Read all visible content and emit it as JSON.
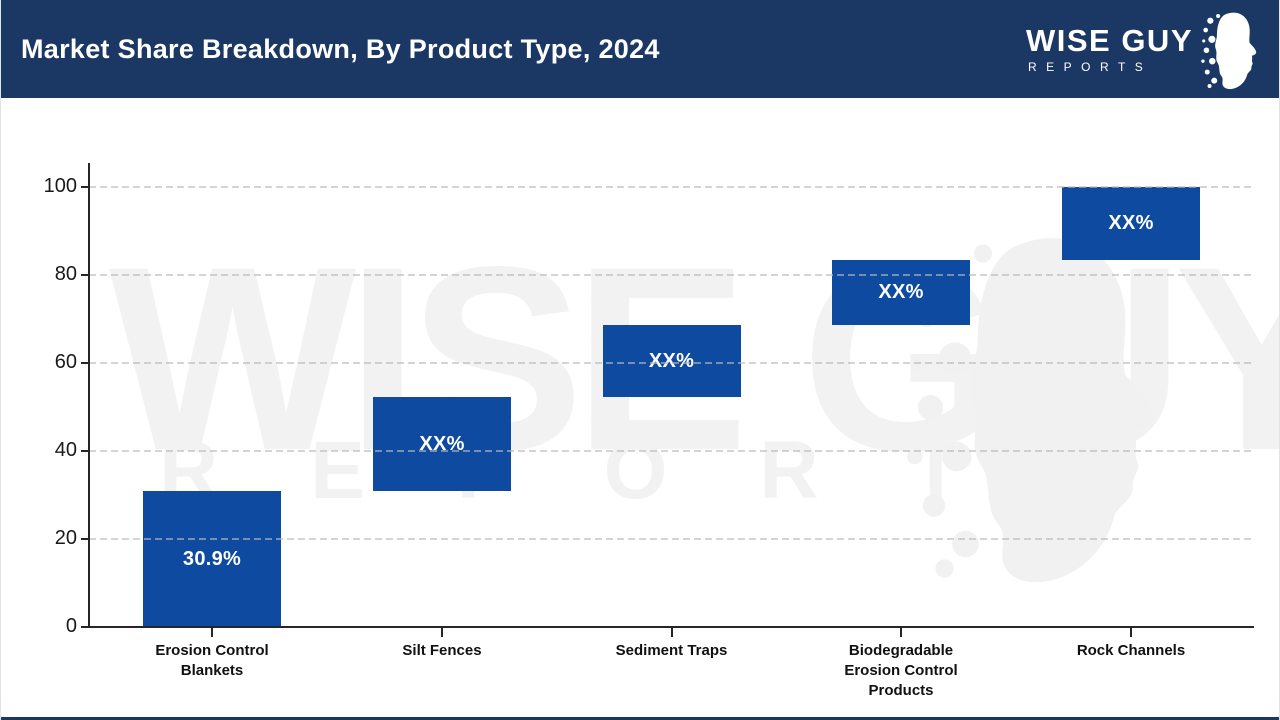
{
  "header": {
    "title": "Market Share Breakdown, By Product Type, 2024",
    "bg_color": "#1B3764",
    "logo": {
      "line1": "WISE GUY",
      "line2": "REPORTS"
    }
  },
  "watermark": {
    "line1": "WISE GUY",
    "line2": "REPORTS"
  },
  "chart_data": {
    "type": "bar",
    "subtype": "waterfall",
    "title": "Market Share Breakdown, By Product Type, 2024",
    "categories": [
      "Erosion Control\nBlankets",
      "Silt Fences",
      "Sediment Traps",
      "Biodegradable\nErosion Control\nProducts",
      "Rock Channels"
    ],
    "segments": [
      {
        "category": "Erosion Control Blankets",
        "start": 0,
        "end": 30.9,
        "value": 30.9,
        "label": "30.9%"
      },
      {
        "category": "Silt Fences",
        "start": 30.9,
        "end": 52.2,
        "value": 21.3,
        "label": "XX%"
      },
      {
        "category": "Sediment Traps",
        "start": 52.2,
        "end": 68.6,
        "value": 16.4,
        "label": "XX%"
      },
      {
        "category": "Biodegradable Erosion Control Products",
        "start": 68.6,
        "end": 83.3,
        "value": 14.7,
        "label": "XX%"
      },
      {
        "category": "Rock Channels",
        "start": 83.3,
        "end": 100.0,
        "value": 16.7,
        "label": "XX%"
      }
    ],
    "yticks": [
      0,
      20,
      40,
      60,
      80,
      100
    ],
    "ylim": [
      0,
      105
    ],
    "xlabel": "",
    "ylabel": "",
    "grid": true,
    "grid_style": "dashed",
    "legend": false,
    "bar_color": "#0D4AA0",
    "bar_label_color": "#FFFFFF",
    "axis_color": "#262626"
  }
}
